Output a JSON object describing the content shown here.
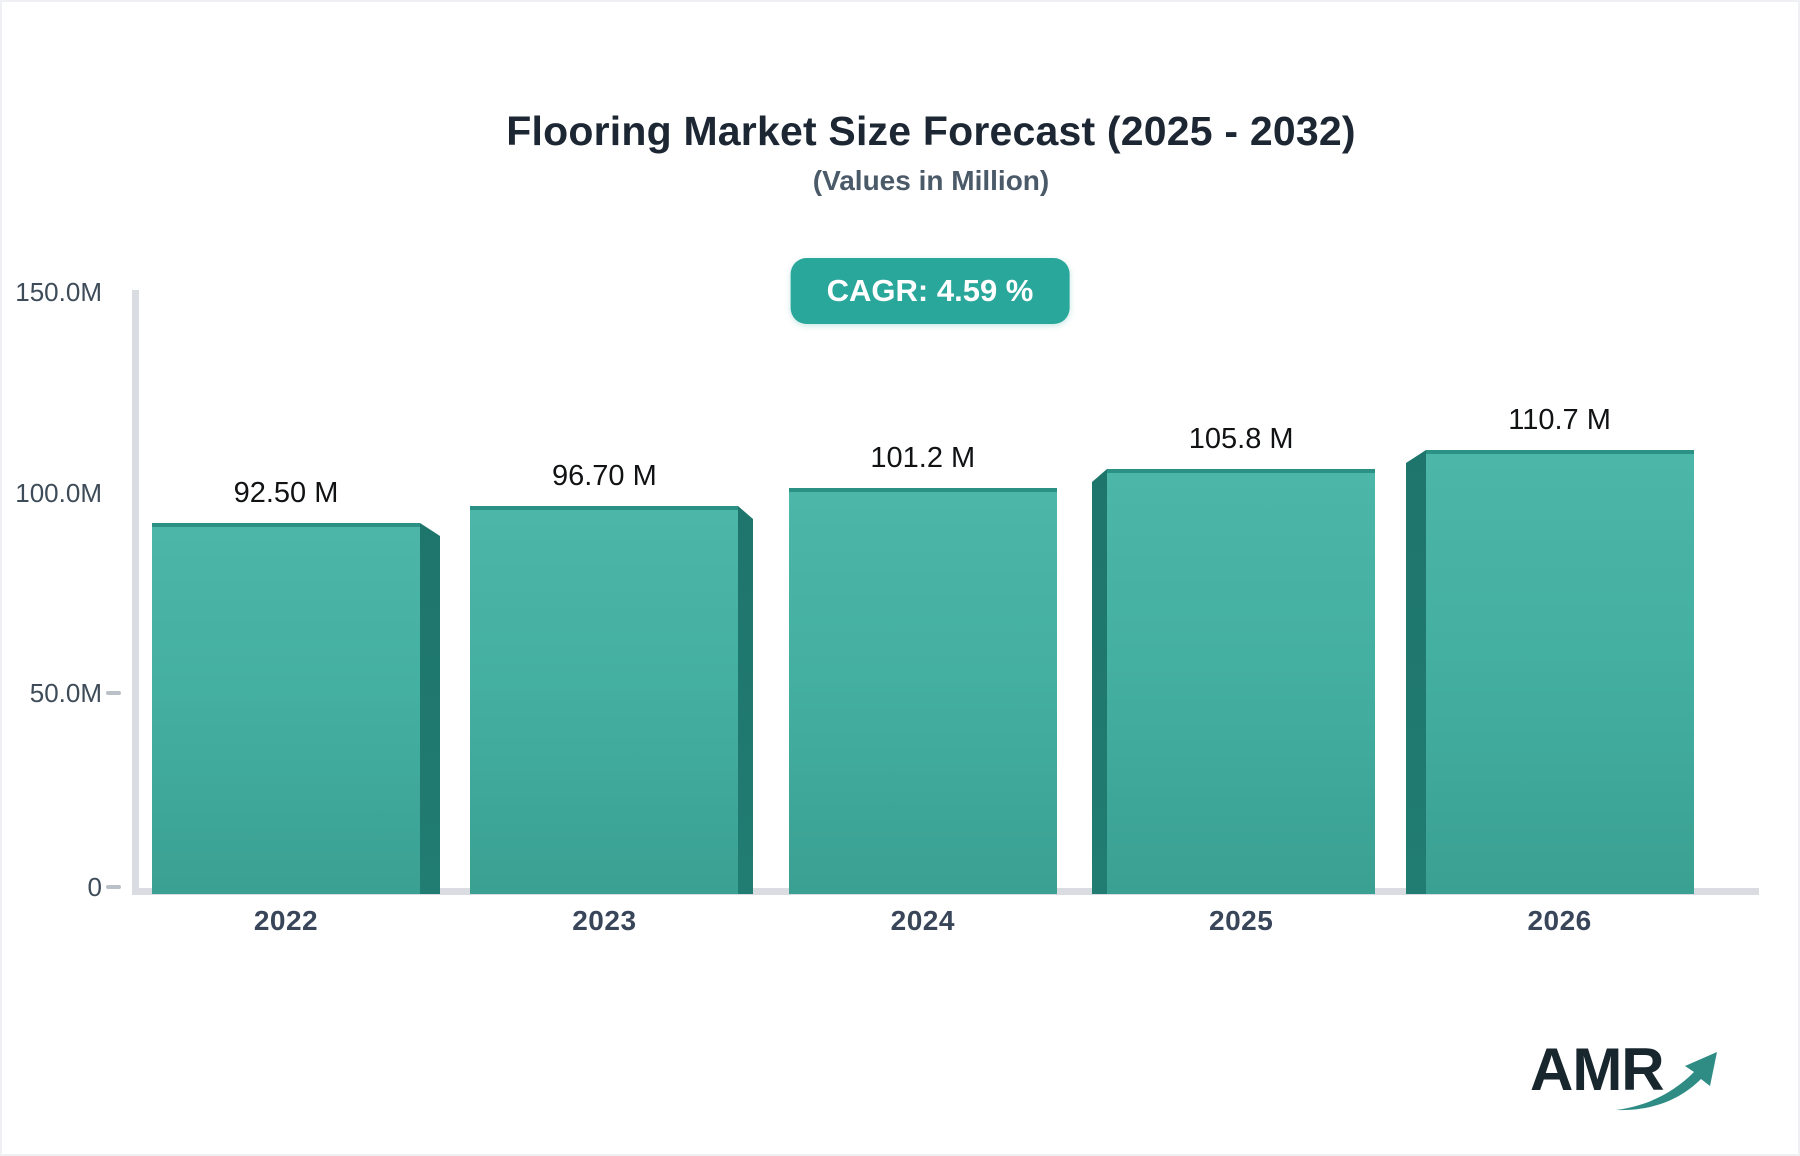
{
  "header": {
    "title": "Flooring Market Size Forecast (2025 - 2032)",
    "subtitle": "(Values in Million)",
    "badge_label": "CAGR: 4.59 %"
  },
  "chart_data": {
    "type": "bar",
    "title": "Flooring Market Size Forecast (2025 - 2032)",
    "subtitle": "(Values in Million)",
    "unit": "Million",
    "cagr": "4.59 %",
    "categories": [
      "2022",
      "2023",
      "2024",
      "2025",
      "2026"
    ],
    "values": [
      92.5,
      96.7,
      101.2,
      105.8,
      110.7
    ],
    "value_labels": [
      "92.50 M",
      "96.70 M",
      "101.2 M",
      "105.8 M",
      "110.7 M"
    ],
    "ylim": [
      0,
      150
    ],
    "yticks": [
      {
        "label": "150.0M",
        "value": 150,
        "dash": false
      },
      {
        "label": "100.0M",
        "value": 100,
        "dash": false
      },
      {
        "label": "50.0M",
        "value": 50,
        "dash": true
      },
      {
        "label": "0",
        "value": 0,
        "dash": true
      }
    ],
    "grid": false,
    "legend": "none",
    "colors": {
      "accent": "#2aa79b",
      "bar_face_top": "#4cb6a8",
      "bar_face_bottom": "#3aa092",
      "bar_side": "#1f7a70",
      "bar_top_edge": "#2b9184",
      "axis_line": "#d9dce0",
      "tick_text": "#3e4c59",
      "category_text": "#39465a"
    }
  },
  "logo": {
    "text": "AMR",
    "arrow_icon_color": "#2e8c85"
  }
}
